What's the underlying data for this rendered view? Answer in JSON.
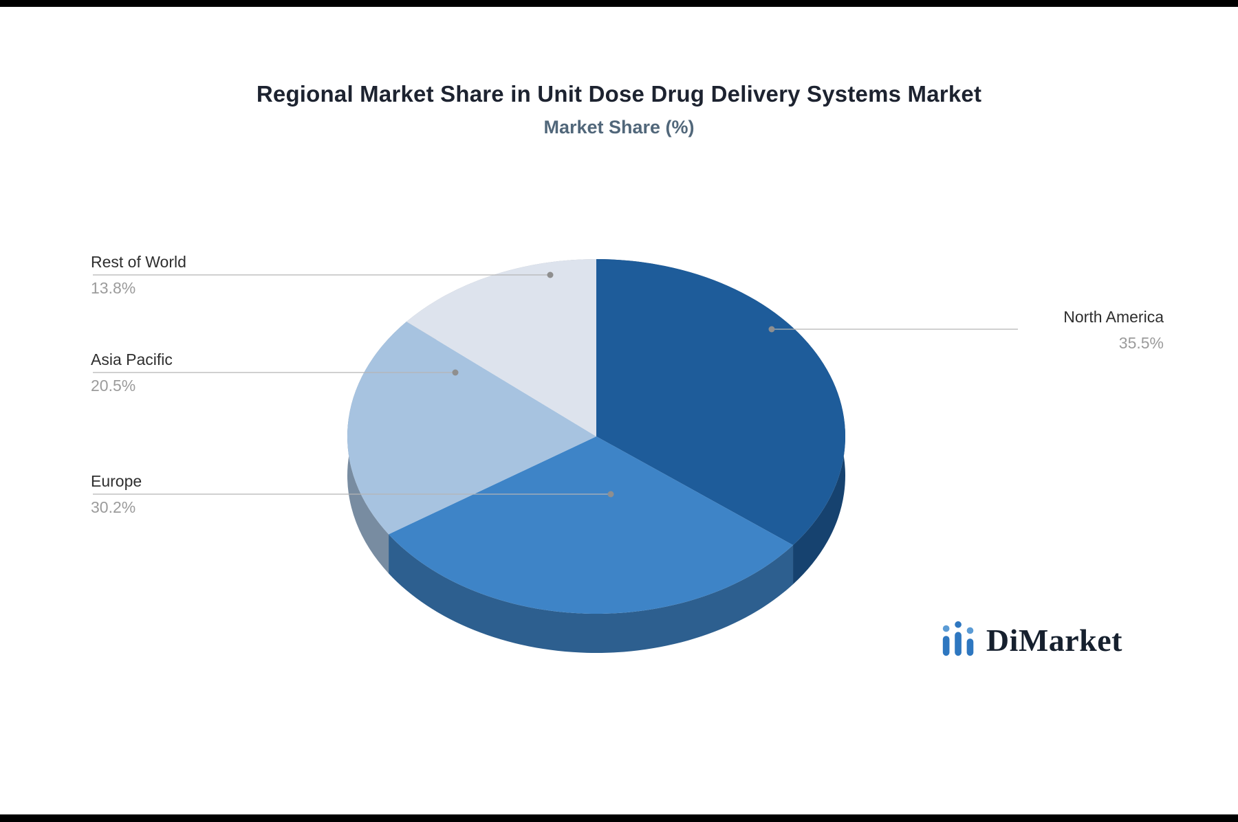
{
  "frame": {
    "logo": {
      "text": "DiMarket",
      "icon": "bar-chart-logo-icon",
      "color": "#2e77c0"
    }
  },
  "chart_data": {
    "type": "pie",
    "style": "3d",
    "title": "Regional Market Share in Unit Dose Drug Delivery Systems Market",
    "subtitle": "Market Share (%)",
    "unit": "%",
    "categories": [
      "North America",
      "Europe",
      "Asia Pacific",
      "Rest of World"
    ],
    "values": [
      35.5,
      30.2,
      20.5,
      13.8
    ],
    "colors": [
      "#1e5c9a",
      "#3e84c7",
      "#a7c3e0",
      "#dde3ed"
    ],
    "start_angle_deg": 0,
    "direction": "clockwise",
    "legend_position": "callout-labels-with-leader-lines",
    "callouts": [
      {
        "label": "North America",
        "value_text": "35.5%",
        "side": "right"
      },
      {
        "label": "Europe",
        "value_text": "30.2%",
        "side": "left"
      },
      {
        "label": "Asia Pacific",
        "value_text": "20.5%",
        "side": "left"
      },
      {
        "label": "Rest of World",
        "value_text": "13.8%",
        "side": "left"
      }
    ]
  }
}
